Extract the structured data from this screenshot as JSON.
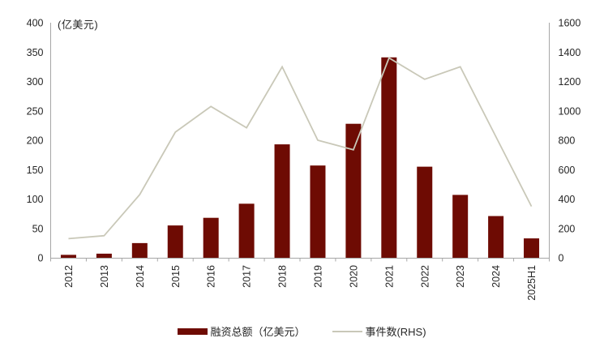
{
  "chart_data": {
    "type": "bar+line combo",
    "unit_label": "(亿美元)",
    "categories": [
      "2012",
      "2013",
      "2014",
      "2015",
      "2016",
      "2017",
      "2018",
      "2019",
      "2020",
      "2021",
      "2022",
      "2023",
      "2024",
      "2025H1"
    ],
    "series": [
      {
        "name": "融资总额（亿美元）",
        "type": "bar",
        "axis": "left",
        "color": "#6e0b03",
        "values": [
          5,
          7,
          25,
          55,
          68,
          92,
          193,
          157,
          228,
          341,
          155,
          107,
          71,
          33
        ]
      },
      {
        "name": "事件数(RHS)",
        "type": "line",
        "axis": "right",
        "color": "#c9c8b8",
        "values": [
          130,
          150,
          430,
          855,
          1030,
          885,
          1300,
          800,
          735,
          1360,
          1215,
          1300,
          825,
          350
        ]
      }
    ],
    "left_axis": {
      "min": 0,
      "max": 400,
      "step": 50,
      "ticks": [
        0,
        50,
        100,
        150,
        200,
        250,
        300,
        350,
        400
      ]
    },
    "right_axis": {
      "min": 0,
      "max": 1600,
      "step": 200,
      "ticks": [
        0,
        200,
        400,
        600,
        800,
        1000,
        1200,
        1400,
        1600
      ]
    },
    "grid": false,
    "legend_position": "bottom-center",
    "axis_color": "#a6a6a6",
    "text_color": "#262626"
  }
}
